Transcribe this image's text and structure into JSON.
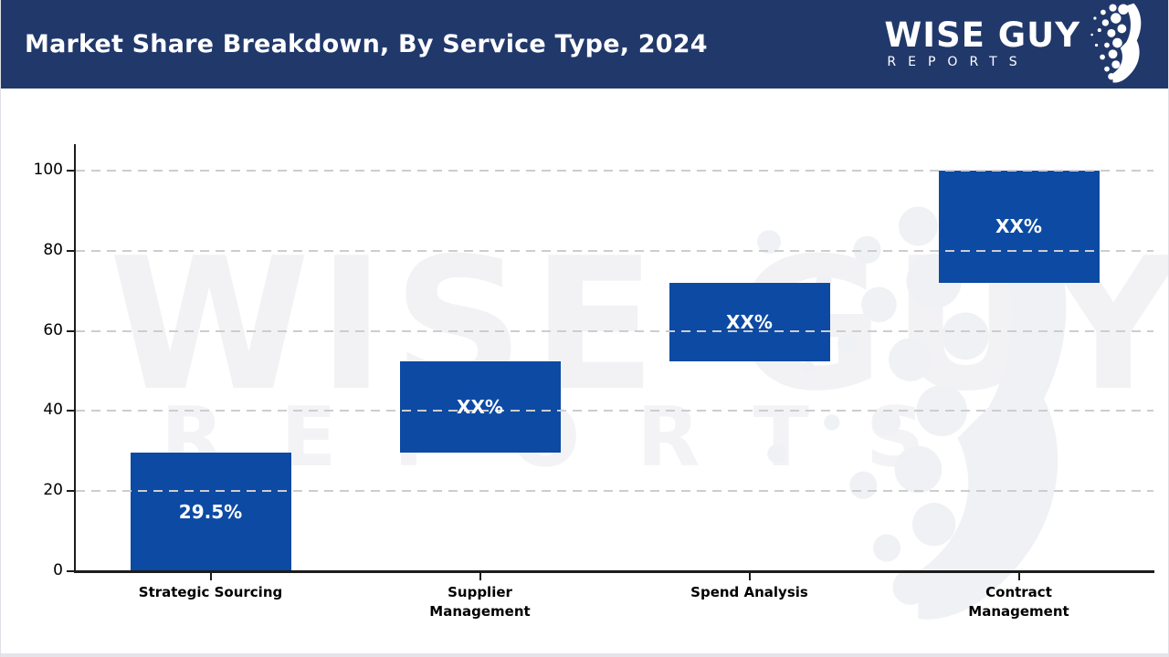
{
  "header": {
    "title": "Market Share Breakdown, By Service Type, 2024",
    "bg_color": "#21386b",
    "logo": {
      "line1": "WISE GUY",
      "line2": "REPORTS"
    }
  },
  "watermark": {
    "line1": "WISE GUY",
    "line2": "REPORTS"
  },
  "chart_data": {
    "type": "bar",
    "subtype": "waterfall",
    "title": "Market Share Breakdown, By Service Type, 2024",
    "xlabel": "",
    "ylabel": "",
    "ylim": [
      0,
      100
    ],
    "y_ticks": [
      0,
      20,
      40,
      60,
      80,
      100
    ],
    "grid": true,
    "grid_style": "dashed",
    "bar_color": "#0d4aa3",
    "bar_label_color": "#ffffff",
    "categories": [
      "Strategic Sourcing",
      "Supplier Management",
      "Spend Analysis",
      "Contract Management"
    ],
    "segments": [
      {
        "category": "Strategic Sourcing",
        "category_lines": [
          "Strategic Sourcing"
        ],
        "start": 0,
        "end": 29.5,
        "label": "29.5%"
      },
      {
        "category": "Supplier Management",
        "category_lines": [
          "Supplier",
          "Management"
        ],
        "start": 29.5,
        "end": 52.5,
        "label": "XX%"
      },
      {
        "category": "Spend Analysis",
        "category_lines": [
          "Spend Analysis"
        ],
        "start": 52.5,
        "end": 72,
        "label": "XX%"
      },
      {
        "category": "Contract Management",
        "category_lines": [
          "Contract",
          "Management"
        ],
        "start": 72,
        "end": 100,
        "label": "XX%"
      }
    ]
  }
}
